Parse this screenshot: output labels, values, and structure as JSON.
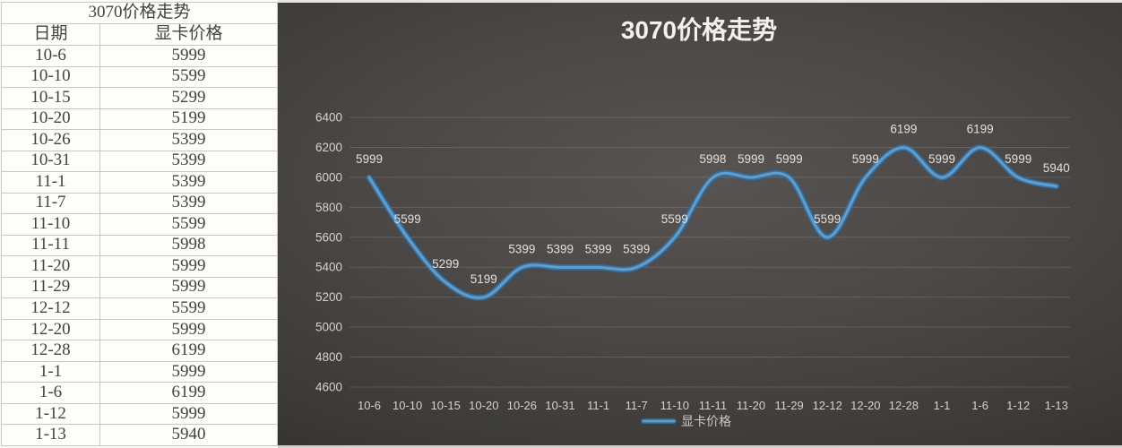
{
  "table": {
    "title": "3070价格走势",
    "columns": [
      "日期",
      "显卡价格"
    ],
    "rows": [
      [
        "10-6",
        "5999"
      ],
      [
        "10-10",
        "5599"
      ],
      [
        "10-15",
        "5299"
      ],
      [
        "10-20",
        "5199"
      ],
      [
        "10-26",
        "5399"
      ],
      [
        "10-31",
        "5399"
      ],
      [
        "11-1",
        "5399"
      ],
      [
        "11-7",
        "5399"
      ],
      [
        "11-10",
        "5599"
      ],
      [
        "11-11",
        "5998"
      ],
      [
        "11-20",
        "5999"
      ],
      [
        "11-29",
        "5999"
      ],
      [
        "12-12",
        "5599"
      ],
      [
        "12-20",
        "5999"
      ],
      [
        "12-28",
        "6199"
      ],
      [
        "1-1",
        "5999"
      ],
      [
        "1-6",
        "6199"
      ],
      [
        "1-12",
        "5999"
      ],
      [
        "1-13",
        "5940"
      ]
    ]
  },
  "chart": {
    "title": "3070价格走势",
    "legend_label": "显卡价格"
  },
  "chart_data": {
    "type": "line",
    "title": "3070价格走势",
    "categories": [
      "10-6",
      "10-10",
      "10-15",
      "10-20",
      "10-26",
      "10-31",
      "11-1",
      "11-7",
      "11-10",
      "11-11",
      "11-20",
      "11-29",
      "12-12",
      "12-20",
      "12-28",
      "1-1",
      "1-6",
      "1-12",
      "1-13"
    ],
    "series": [
      {
        "name": "显卡价格",
        "values": [
          5999,
          5599,
          5299,
          5199,
          5399,
          5399,
          5399,
          5399,
          5599,
          5998,
          5999,
          5999,
          5599,
          5999,
          6199,
          5999,
          6199,
          5999,
          5940
        ]
      }
    ],
    "ylim": [
      4600,
      6400
    ],
    "ytick_step": 200,
    "grid": true,
    "smooth": true,
    "data_labels": true,
    "legend_position": "bottom",
    "line_color": "#4e90c6",
    "background_color": "#4a4745",
    "label_color": "#e3e1dd",
    "axis_color": "#d5d2ce"
  }
}
